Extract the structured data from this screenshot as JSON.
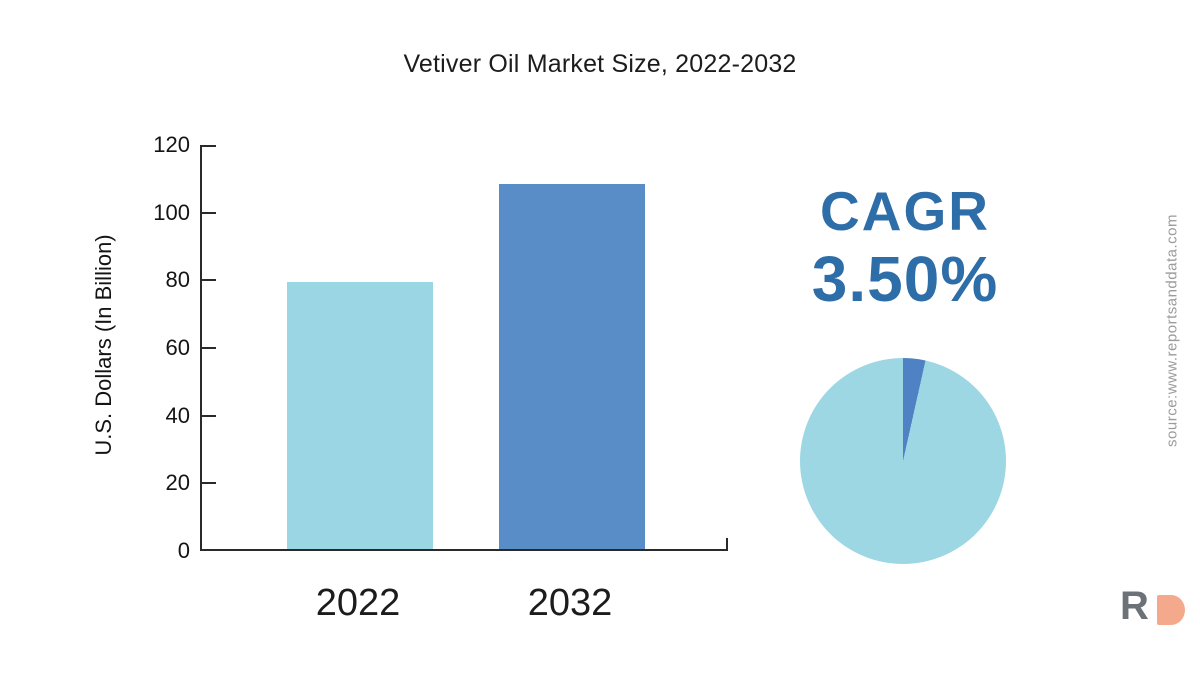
{
  "title": "Vetiver Oil Market Size, 2022-2032",
  "chart_data": [
    {
      "type": "bar",
      "title": "Vetiver Oil Market Size, 2022-2032",
      "xlabel": "",
      "ylabel": "U.S. Dollars (In Billion)",
      "categories": [
        "2022",
        "2032"
      ],
      "values": [
        79,
        108
      ],
      "bar_colors": [
        "#9bd6e4",
        "#588dc7"
      ],
      "ylim": [
        0,
        120
      ],
      "yticks": [
        0,
        20,
        40,
        60,
        80,
        100,
        120
      ],
      "grid": false,
      "legend_position": "none",
      "axis_color": "#2a2a2a"
    },
    {
      "type": "pie",
      "slices": [
        {
          "label": "CAGR",
          "value": 3.5,
          "color": "#4e82c4"
        },
        {
          "label": "remainder",
          "value": 96.5,
          "color": "#9dd7e4"
        }
      ],
      "legend_position": "none"
    }
  ],
  "cagr": {
    "label": "CAGR",
    "value": "3.50%",
    "percent": 3.5,
    "color": "#2d6da8"
  },
  "watermark": {
    "text": "source:www.reportsanddata.com",
    "color": "#9b9b9b"
  },
  "logo": {
    "letter_r": "R",
    "r_color": "#6d7178",
    "d_color": "#f5a98c"
  }
}
